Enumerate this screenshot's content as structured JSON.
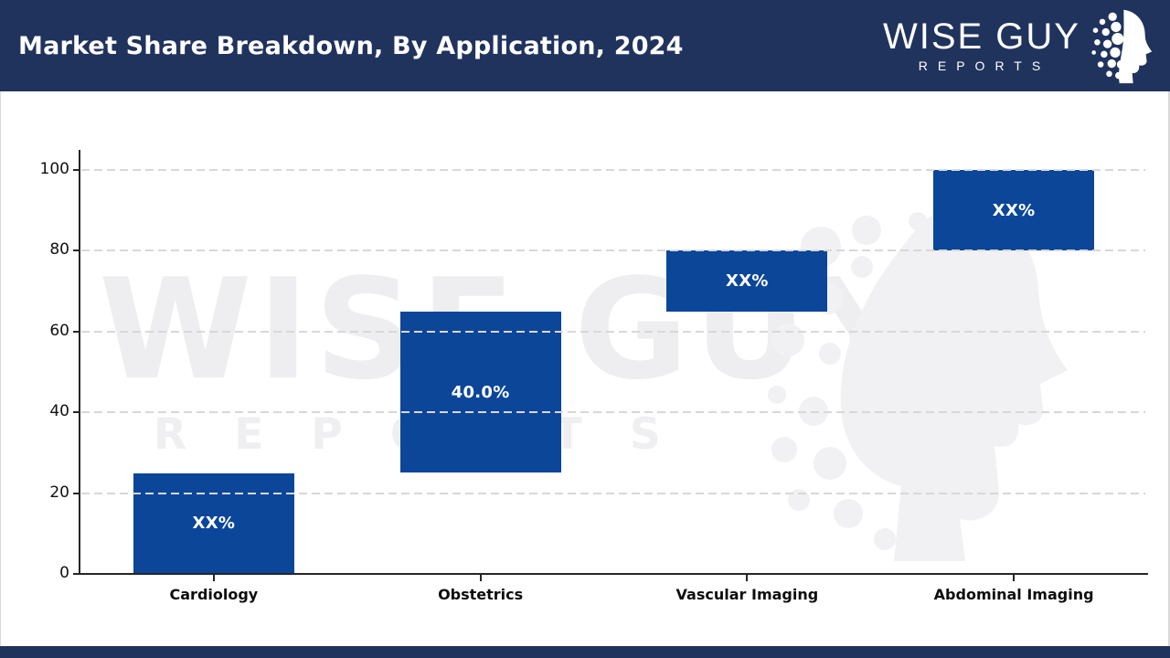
{
  "header": {
    "title": "Market Share Breakdown, By Application, 2024",
    "bg_color": "#20335D",
    "logo": {
      "line1": "WISE GUY",
      "line2": "REPORTS",
      "head_icon": "dotted-head-profile"
    }
  },
  "watermark": {
    "line1": "WISE GUY",
    "line2": "REPORTS",
    "head_icon": "dotted-head-profile"
  },
  "chart_data": {
    "type": "bar",
    "subtype": "floating-waterfall",
    "title": "Market Share Breakdown, By Application, 2024",
    "categories": [
      "Cardiology",
      "Obstetrics",
      "Vascular Imaging",
      "Abdominal Imaging"
    ],
    "series": [
      {
        "name": "Market Share",
        "segments": [
          {
            "category": "Cardiology",
            "from": 0,
            "to": 25,
            "label": "XX%"
          },
          {
            "category": "Obstetrics",
            "from": 25,
            "to": 65,
            "label": "40.0%"
          },
          {
            "category": "Vascular Imaging",
            "from": 65,
            "to": 80,
            "label": "XX%"
          },
          {
            "category": "Abdominal Imaging",
            "from": 80,
            "to": 100,
            "label": "XX%"
          }
        ]
      }
    ],
    "xlabel": "",
    "ylabel": "",
    "yticks": [
      0,
      20,
      40,
      60,
      80,
      100
    ],
    "ylim": [
      0,
      105
    ],
    "grid": "horizontal-dashed-over-bars",
    "legend": "none",
    "bar_color": "#0B4699",
    "grid_color": "#d8d8d8",
    "axis_color": "#262626"
  }
}
